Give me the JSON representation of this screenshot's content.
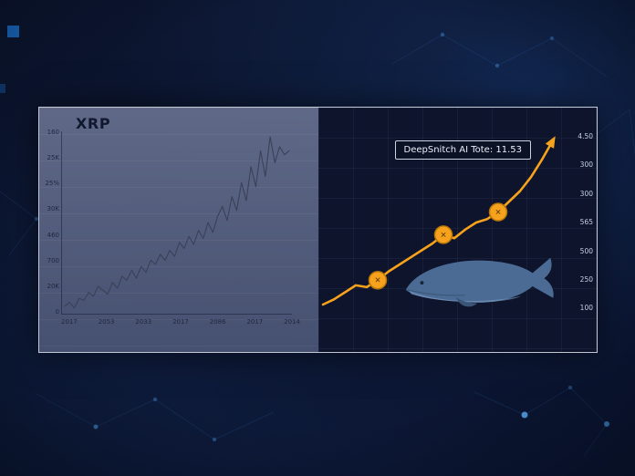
{
  "colors": {
    "accent_orange": "#f6a21d",
    "price_line": "#3a4158",
    "whale_body": "#4d6e99",
    "whale_belly": "#87a7cc",
    "whale_fin": "#3c5878",
    "whale_eye": "#19273a",
    "panel_left_bg": "#5a6484",
    "panel_right_bg": "#0d142b"
  },
  "chart_data": [
    {
      "type": "line",
      "name": "xrp-price-history",
      "title": "XRP",
      "x_tick_labels": [
        "2017",
        "2053",
        "2033",
        "2017",
        "2086",
        "2017",
        "2014"
      ],
      "y_tick_labels": [
        "160",
        "25K",
        "25%",
        "30K",
        "460",
        "700",
        "20K",
        "0"
      ],
      "values": [
        0.1,
        0.12,
        0.09,
        0.14,
        0.13,
        0.17,
        0.15,
        0.2,
        0.18,
        0.16,
        0.22,
        0.19,
        0.25,
        0.23,
        0.28,
        0.24,
        0.3,
        0.27,
        0.33,
        0.31,
        0.36,
        0.33,
        0.38,
        0.35,
        0.42,
        0.39,
        0.45,
        0.41,
        0.48,
        0.44,
        0.52,
        0.47,
        0.55,
        0.6,
        0.53,
        0.65,
        0.58,
        0.72,
        0.63,
        0.8,
        0.7,
        0.88,
        0.75,
        0.95,
        0.82,
        0.9,
        0.86,
        0.88
      ],
      "line_color": "#3a4158",
      "ylim": [
        0,
        1
      ],
      "grid": false,
      "legend": "none"
    },
    {
      "type": "line",
      "name": "deepsnitch-ai-projection",
      "annotation": "DeepSnitch AI Tote: 11.53",
      "y_tick_labels_right": [
        "4.50",
        "300",
        "300",
        "565",
        "500",
        "250",
        "100"
      ],
      "values": [
        0.03,
        0.06,
        0.1,
        0.14,
        0.13,
        0.17,
        0.22,
        0.26,
        0.3,
        0.34,
        0.38,
        0.43,
        0.41,
        0.46,
        0.5,
        0.52,
        0.56,
        0.62,
        0.68,
        0.76,
        0.86,
        0.97
      ],
      "marker_indices": [
        5,
        11,
        16
      ],
      "marker_glyph": "✕",
      "line_color": "#f6a21d",
      "ylim": [
        0,
        1
      ],
      "grid": true,
      "legend": "none"
    }
  ]
}
